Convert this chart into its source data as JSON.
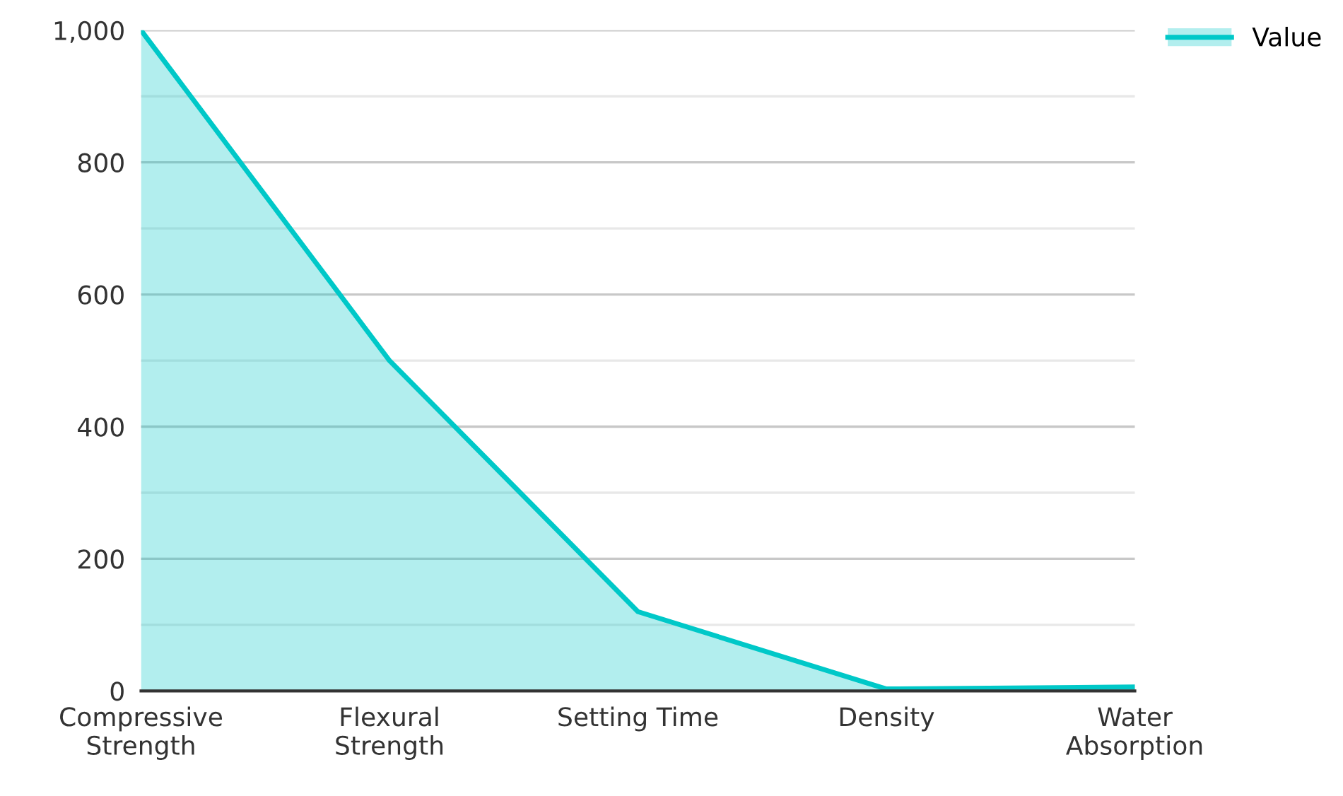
{
  "chart_data": {
    "type": "area",
    "categories": [
      "Compressive\nStrength",
      "Flexural\nStrength",
      "Setting Time",
      "Density",
      "Water\nAbsorption"
    ],
    "series": [
      {
        "name": "Value",
        "color": "#00c8c8",
        "values": [
          1000,
          500,
          120,
          3,
          6
        ]
      }
    ],
    "ylim": [
      0,
      1000
    ],
    "yticks": [
      0,
      {
        "value": 100,
        "label": null
      },
      200,
      {
        "value": 300,
        "label": null
      },
      400,
      {
        "value": 500,
        "label": null
      },
      600,
      {
        "value": 700,
        "label": null
      },
      800,
      {
        "value": 900,
        "label": null
      },
      {
        "value": 1000,
        "label": "1,000"
      }
    ],
    "grid": "y",
    "legend": "top right"
  }
}
